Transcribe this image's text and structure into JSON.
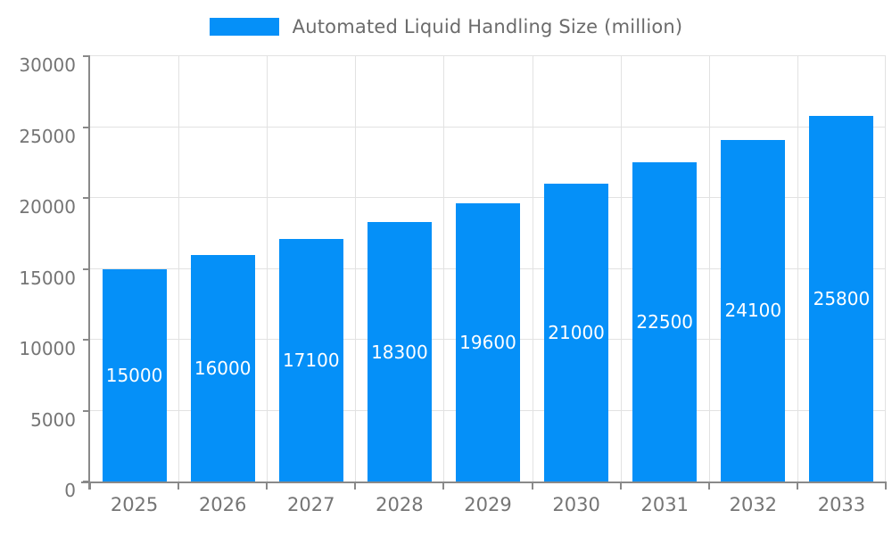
{
  "chart_data": {
    "type": "bar",
    "title": "",
    "categories": [
      "2025",
      "2026",
      "2027",
      "2028",
      "2029",
      "2030",
      "2031",
      "2032",
      "2033"
    ],
    "series": [
      {
        "name": "Automated Liquid Handling Size (million)",
        "values": [
          15000,
          16000,
          17100,
          18300,
          19600,
          21000,
          22500,
          24100,
          25800
        ]
      }
    ],
    "value_labels": [
      "15000",
      "16000",
      "17100",
      "18300",
      "19600",
      "21000",
      "22500",
      "24100",
      "25800"
    ],
    "xlabel": "",
    "ylabel": "",
    "ylim": [
      0,
      30000
    ],
    "yticks": [
      0,
      5000,
      10000,
      15000,
      20000,
      25000,
      30000
    ],
    "ytick_labels": [
      "0",
      "5000",
      "10000",
      "15000",
      "20000",
      "25000",
      "30000"
    ],
    "grid": true,
    "legend_position": "top-center",
    "colors": {
      "bar": "#0590f8",
      "bar_value_label": "#ffffff",
      "axis": "#898989",
      "grid": "#e2e2e2",
      "tick_label": "#757575",
      "legend_text": "#6b6b6b",
      "background": "#ffffff"
    }
  }
}
